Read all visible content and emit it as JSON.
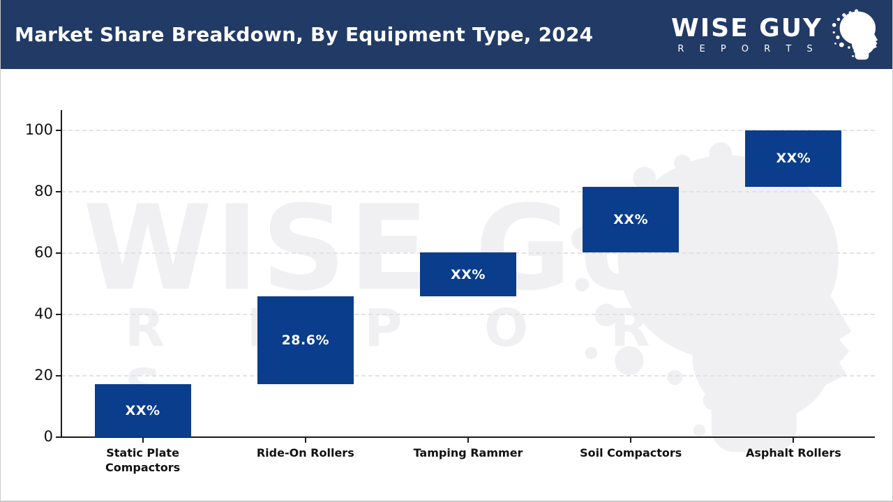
{
  "header": {
    "title": "Market Share Breakdown, By Equipment Type, 2024",
    "logo": {
      "line1": "WISE GUY",
      "line2": "REPORTS",
      "head_icon": "dotted-face-profile"
    }
  },
  "watermark": {
    "line1": "WISE GUY",
    "line2": "REPORTS",
    "head_icon": "dotted-face-profile"
  },
  "colors": {
    "header_bg": "#213a66",
    "bar_fill": "#0a3d8c",
    "bar_label": "#ffffff",
    "grid": "#e2e2e2",
    "axis": "#1a1a1a",
    "watermark": "#f0f0f2",
    "page_border": "#c9c9c9"
  },
  "chart_data": {
    "type": "bar",
    "subtype": "waterfall-floating-bars",
    "title": "Market Share Breakdown, By Equipment Type, 2024",
    "xlabel": "",
    "ylabel": "",
    "ylim": [
      0,
      105
    ],
    "yticks": [
      0,
      20,
      40,
      60,
      80,
      100
    ],
    "grid": "horizontal-dashed",
    "legend": "none",
    "categories": [
      "Static Plate\nCompactors",
      "Ride-On Rollers",
      "Tamping Rammer",
      "Soil Compactors",
      "Asphalt Rollers"
    ],
    "segments": [
      {
        "category": "Static Plate Compactors",
        "start": 0,
        "end": 17.3,
        "label": "XX%"
      },
      {
        "category": "Ride-On Rollers",
        "start": 17.3,
        "end": 45.9,
        "label": "28.6%"
      },
      {
        "category": "Tamping Rammer",
        "start": 45.9,
        "end": 60.2,
        "label": "XX%"
      },
      {
        "category": "Soil Compactors",
        "start": 60.2,
        "end": 81.6,
        "label": "XX%"
      },
      {
        "category": "Asphalt Rollers",
        "start": 81.6,
        "end": 100,
        "label": "XX%"
      }
    ]
  }
}
